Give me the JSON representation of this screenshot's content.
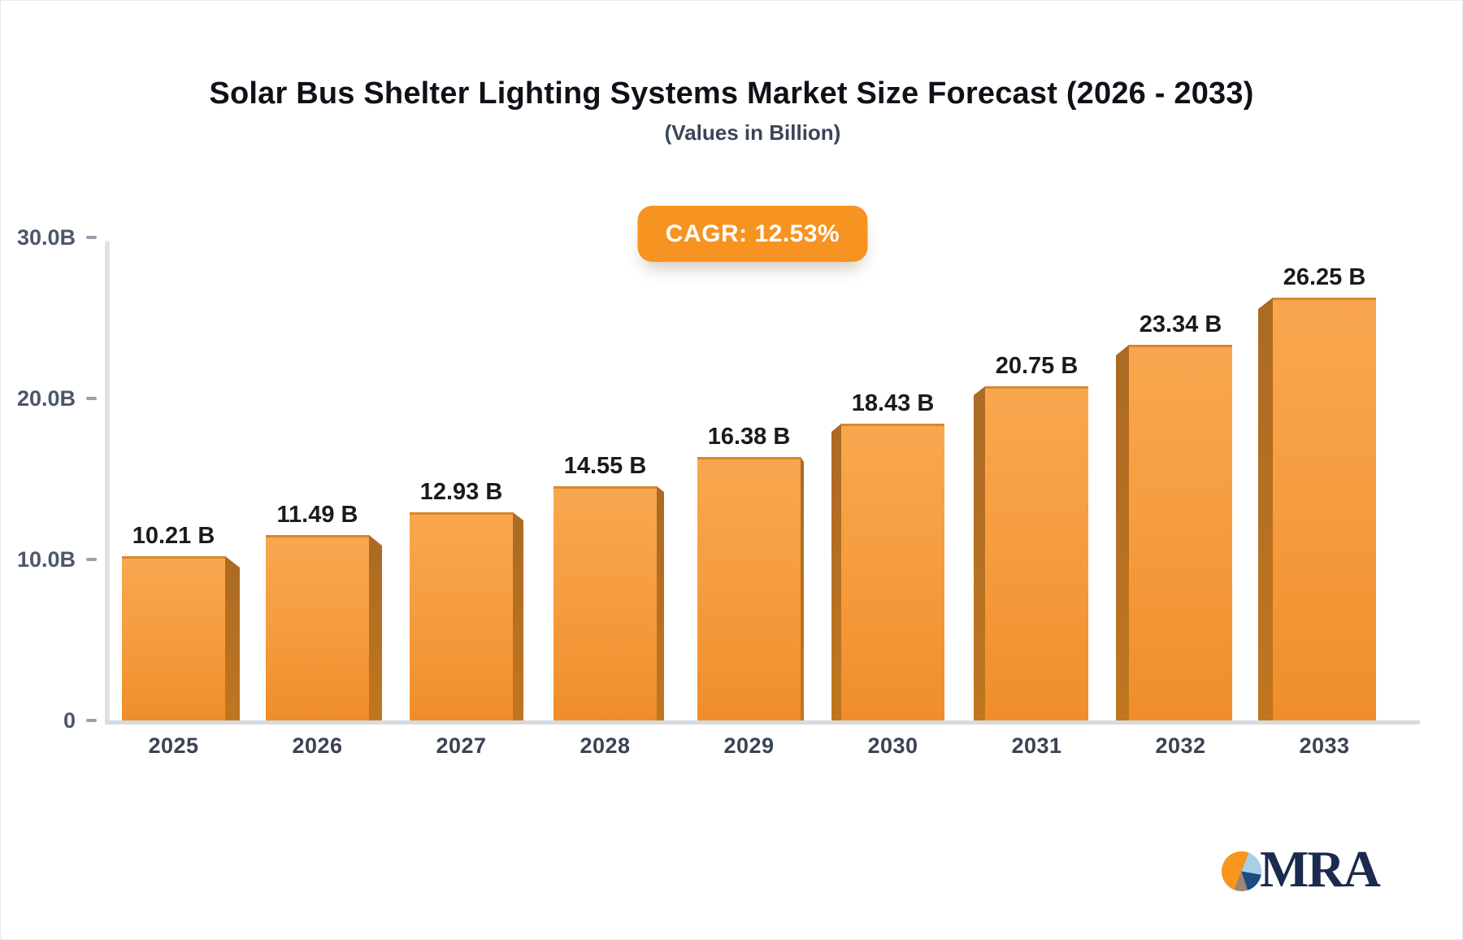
{
  "header": {
    "title": "Solar Bus Shelter Lighting Systems Market Size Forecast (2026 - 2033)",
    "subtitle": "(Values in Billion)"
  },
  "badge": {
    "label": "CAGR: 12.53%"
  },
  "chart_data": {
    "type": "bar",
    "title": "Solar Bus Shelter Lighting Systems Market Size Forecast (2026 - 2033)",
    "subtitle": "(Values in Billion)",
    "cagr_annotation": "CAGR: 12.53%",
    "categories": [
      "2025",
      "2026",
      "2027",
      "2028",
      "2029",
      "2030",
      "2031",
      "2032",
      "2033"
    ],
    "values": [
      10.21,
      11.49,
      12.93,
      14.55,
      16.38,
      18.43,
      20.75,
      23.34,
      26.25
    ],
    "value_labels": [
      "10.21 B",
      "11.49 B",
      "12.93 B",
      "14.55 B",
      "16.38 B",
      "18.43 B",
      "20.75 B",
      "23.34 B",
      "26.25 B"
    ],
    "ylim": [
      0,
      30
    ],
    "yticks": [
      {
        "label": "30.0B",
        "value": 30
      },
      {
        "label": "20.0B",
        "value": 20
      },
      {
        "label": "10.0B",
        "value": 10
      },
      {
        "label": "0",
        "value": 0
      }
    ],
    "xlabel": "",
    "ylabel": "",
    "grid": false,
    "legend": "none",
    "bar_style": "3d-column"
  },
  "logo": {
    "text": "MRA"
  },
  "colors": {
    "accent_orange": "#f79320",
    "bar_face_top": "#f9a74f",
    "bar_face_bottom": "#ef8e2b",
    "bar_side": "#b06c22",
    "axis_gray": "#d8dade",
    "label_slate": "#3a4453",
    "title_black": "#0e1118",
    "logo_navy": "#1b2a4e",
    "logo_lightblue": "#a8cfe9",
    "logo_taupe": "#9b8678"
  }
}
